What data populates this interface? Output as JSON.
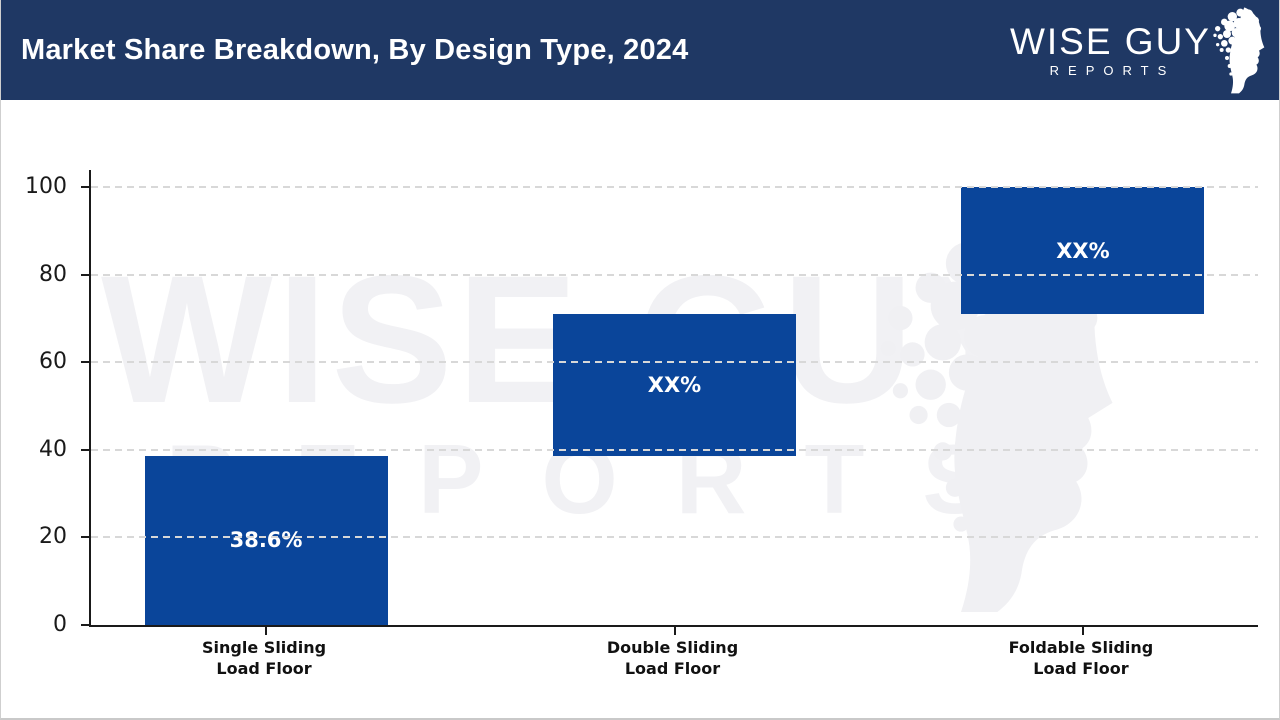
{
  "header": {
    "title": "Market Share Breakdown, By Design Type, 2024",
    "bg_color": "#1f3864",
    "logo": {
      "line1": "WISE GUY",
      "line2": "REPORTS"
    }
  },
  "watermark": {
    "line1": "WISE GUY",
    "line2": "REPORTS"
  },
  "chart_data": {
    "type": "bar",
    "subtype": "floating-waterfall",
    "title": "Market Share Breakdown, By Design Type, 2024",
    "categories": [
      {
        "line1": "Single Sliding",
        "line2": "Load Floor"
      },
      {
        "line1": "Double Sliding",
        "line2": "Load Floor"
      },
      {
        "line1": "Foldable Sliding",
        "line2": "Load Floor"
      }
    ],
    "bars": [
      {
        "category": "Single Sliding Load Floor",
        "start": 0,
        "end": 38.6,
        "label": "38.6%"
      },
      {
        "category": "Double Sliding Load Floor",
        "start": 38.6,
        "end": 71,
        "label": "XX%"
      },
      {
        "category": "Foldable Sliding Load Floor",
        "start": 71,
        "end": 100,
        "label": "XX%"
      }
    ],
    "ylim": [
      0,
      100
    ],
    "yticks": [
      0,
      20,
      40,
      60,
      80,
      100
    ],
    "grid": "horizontal-dashed",
    "legend": "none",
    "bar_color": "#0a459a",
    "bar_label_color": "#ffffff",
    "grid_color": "#d8d8d8",
    "axis_color": "#1a1a1a"
  }
}
